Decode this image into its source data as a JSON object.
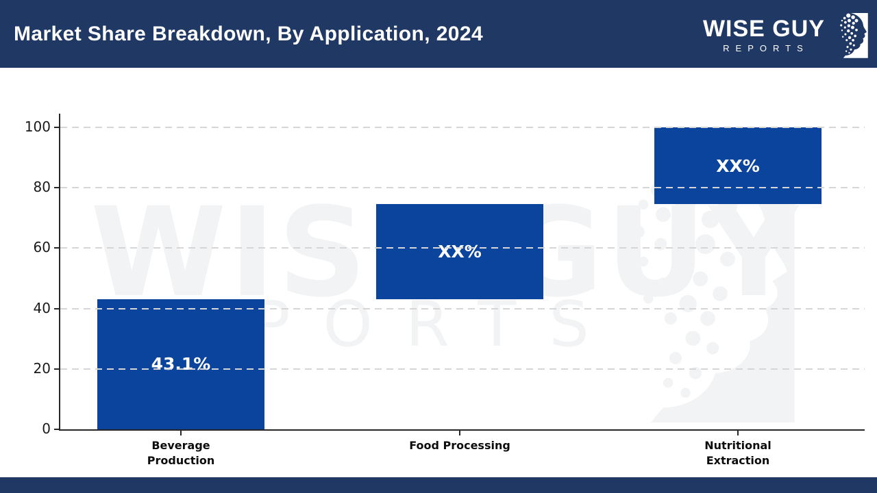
{
  "brand": {
    "name": "WISE GUY",
    "sub": "REPORTS"
  },
  "header": {
    "bg": "#1f3864",
    "title": "Market Share Breakdown, By Application, 2024"
  },
  "footer": {
    "bg": "#1f3864"
  },
  "watermark": {
    "brand": "WISE GUY",
    "sub": "REPORTS"
  },
  "chart_data": {
    "type": "bar",
    "variant": "waterfall",
    "title": "Market Share Breakdown, By Application, 2024",
    "categories": [
      "Beverage\nProduction",
      "Food Processing",
      "Nutritional\nExtraction"
    ],
    "segments": [
      {
        "category": "Beverage Production",
        "start": 0,
        "end": 43.1,
        "label": "43.1%"
      },
      {
        "category": "Food Processing",
        "start": 43.1,
        "end": 74.6,
        "label": "XX%"
      },
      {
        "category": "Nutritional Extraction",
        "start": 74.6,
        "end": 100,
        "label": "XX%"
      }
    ],
    "xlabel": "",
    "ylabel": "",
    "yticks": [
      0,
      20,
      40,
      60,
      80,
      100
    ],
    "ylim": [
      0,
      104
    ],
    "grid": {
      "axis": "y",
      "style": "dashed",
      "color": "#d6d6d6",
      "above_bars": true
    },
    "legend": null,
    "bar_color": "#0a449c",
    "bar_label_color": "#ffffff",
    "axis_color": "#262626"
  }
}
